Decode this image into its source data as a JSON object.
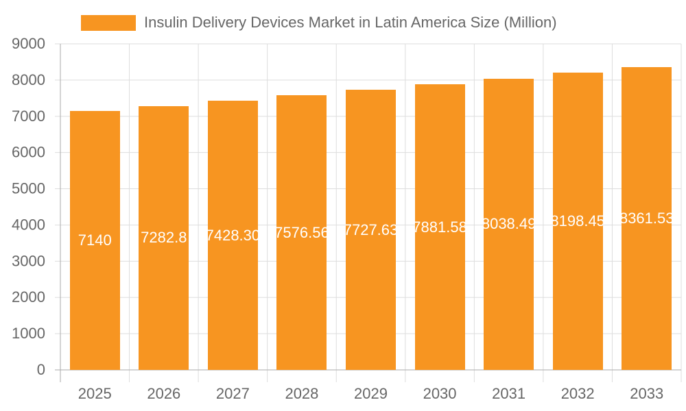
{
  "chart_data": {
    "type": "bar",
    "title": "",
    "categories": [
      "2025",
      "2026",
      "2027",
      "2028",
      "2029",
      "2030",
      "2031",
      "2032",
      "2033"
    ],
    "series": [
      {
        "name": "Insulin Delivery Devices Market in Latin America Size (Million)",
        "values": [
          7140,
          7282.8,
          7428.3,
          7576.56,
          7727.63,
          7881.58,
          8038.49,
          8198.45,
          8361.53
        ],
        "color": "#f79521"
      }
    ],
    "data_labels": [
      "7140",
      "7282.8",
      "7428.30",
      "7576.56",
      "7727.63",
      "7881.58",
      "8038.49",
      "8198.45",
      "8361.53"
    ],
    "ylim": [
      0,
      9000
    ],
    "yticks": [
      "0",
      "1000",
      "2000",
      "3000",
      "4000",
      "5000",
      "6000",
      "7000",
      "8000",
      "9000"
    ],
    "grid": true,
    "legend": "top",
    "xlabel": "",
    "ylabel": ""
  }
}
